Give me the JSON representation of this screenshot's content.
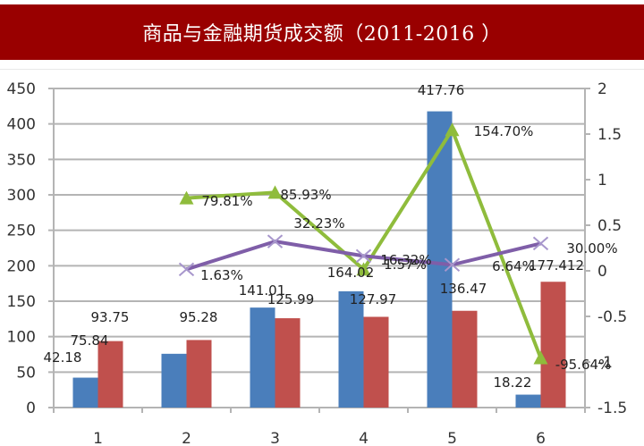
{
  "title": "商品与金融期货成交额（2011-2016 ）",
  "colors": {
    "title_bg": "#990000",
    "bar_series_1": "#4a7ebb",
    "bar_series_2": "#c0504d",
    "line_series_1": "#8fbc3c",
    "line_series_2": "#7f5ea8",
    "grid": "#b4b4b4"
  },
  "chart_data": {
    "type": "bar",
    "title": "商品与金融期货成交额（2011-2016 ）",
    "categories": [
      "1",
      "2",
      "3",
      "4",
      "5",
      "6"
    ],
    "series": [
      {
        "name": "bar_1",
        "type": "bar",
        "axis": "left",
        "values": [
          42.18,
          75.84,
          141.01,
          164.02,
          417.76,
          18.22
        ],
        "labels": [
          "42.18",
          "75.84",
          "141.01",
          "164.02",
          "417.76",
          "18.22"
        ]
      },
      {
        "name": "bar_2",
        "type": "bar",
        "axis": "left",
        "values": [
          93.75,
          95.28,
          125.99,
          127.97,
          136.47,
          177.412
        ],
        "labels": [
          "93.75",
          "95.28",
          "125.99",
          "127.97",
          "136.47",
          "177.412"
        ]
      },
      {
        "name": "line_green",
        "type": "line",
        "axis": "right",
        "marker": "triangle",
        "values": [
          null,
          0.7981,
          0.8593,
          0.0157,
          1.547,
          -0.9564
        ],
        "labels": [
          "",
          "79.81%",
          "85.93%",
          "1.57%",
          "154.70%",
          "-95.64%"
        ]
      },
      {
        "name": "line_purple",
        "type": "line",
        "axis": "right",
        "marker": "x",
        "values": [
          null,
          0.0163,
          0.3223,
          0.1632,
          0.0664,
          0.3
        ],
        "labels": [
          "",
          "1.63%",
          "32.23%",
          "16.32%",
          "6.64%",
          "30.00%"
        ]
      }
    ],
    "left_axis": {
      "ylim": [
        0,
        450
      ],
      "ticks": [
        "0",
        "50",
        "100",
        "150",
        "200",
        "250",
        "300",
        "350",
        "400",
        "450"
      ]
    },
    "right_axis": {
      "ylim": [
        -1.5,
        2
      ],
      "ticks": [
        "-1.5",
        "-1",
        "-0.5",
        "0",
        "0.5",
        "1",
        "1.5",
        "2"
      ]
    },
    "xlabel": "",
    "ylabel": "",
    "grid": true,
    "legend": "none"
  }
}
